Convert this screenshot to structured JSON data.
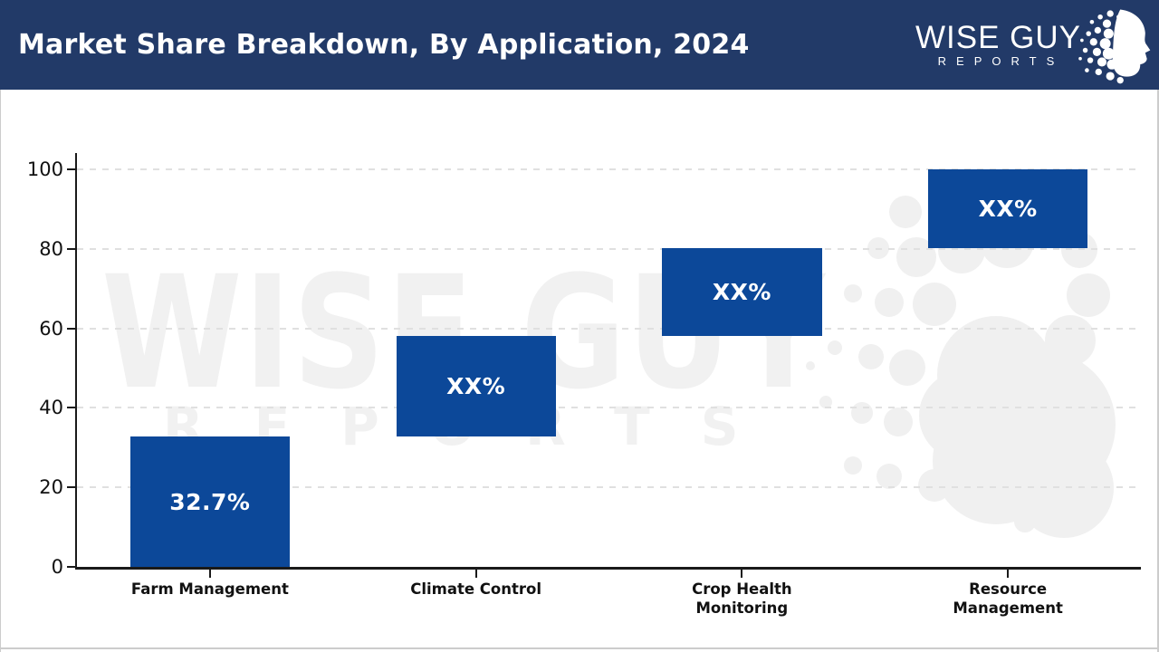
{
  "header": {
    "title": "Market Share Breakdown, By Application, 2024",
    "bg_color": "#223a68",
    "logo": {
      "line1": "WISE GUY",
      "line2": "REPORTS"
    }
  },
  "watermark": {
    "line1": "WISE GUY",
    "line2": "REPORTS"
  },
  "chart_data": {
    "type": "bar",
    "subtype": "waterfall",
    "title": "Market Share Breakdown, By Application, 2024",
    "categories": [
      "Farm Management",
      "Climate Control",
      "Crop Health Monitoring",
      "Resource Management"
    ],
    "category_label_lines": [
      [
        "Farm Management"
      ],
      [
        "Climate Control"
      ],
      [
        "Crop Health",
        "Monitoring"
      ],
      [
        "Resource",
        "Management"
      ]
    ],
    "segments": [
      {
        "category": "Farm Management",
        "start": 0,
        "end": 32.7,
        "label": "32.7%"
      },
      {
        "category": "Climate Control",
        "start": 32.7,
        "end": 58.2,
        "label": "XX%"
      },
      {
        "category": "Crop Health Monitoring",
        "start": 58.2,
        "end": 80.2,
        "label": "XX%"
      },
      {
        "category": "Resource Management",
        "start": 80.2,
        "end": 100,
        "label": "XX%"
      }
    ],
    "ylim": [
      0,
      100
    ],
    "yticks": [
      0,
      20,
      40,
      60,
      80,
      100
    ],
    "xlabel": "",
    "ylabel": "",
    "legend": "none",
    "grid": "horizontal-dashed",
    "bar_color": "#0c4899",
    "axis_color": "#1a1a1a",
    "grid_color": "#e0e0e0",
    "value_label_color": "#ffffff"
  }
}
